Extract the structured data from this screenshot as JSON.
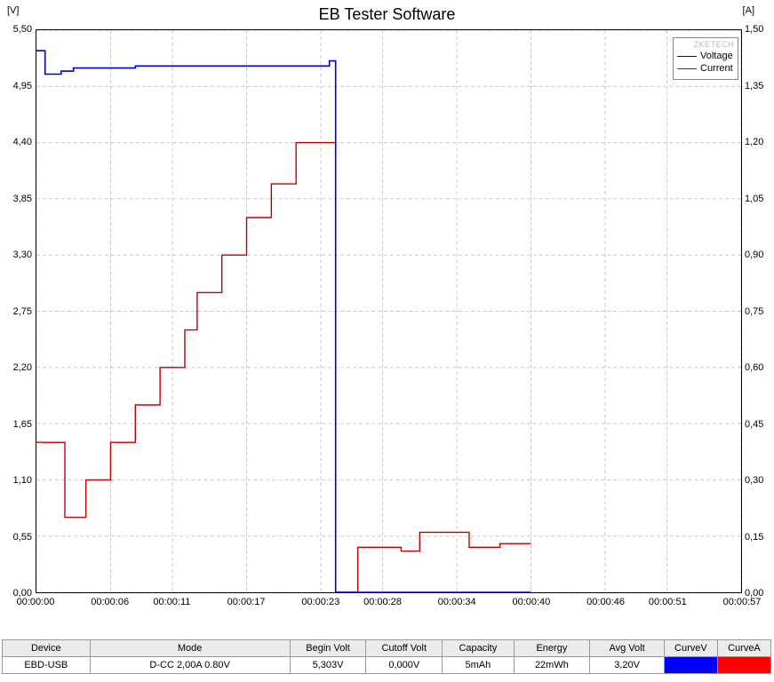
{
  "chart": {
    "title": "EB Tester Software",
    "y_left_unit": "[V]",
    "y_right_unit": "[A]",
    "watermark": "ZKETECH",
    "background_color": "#ffffff",
    "grid_color": "#c8c8c8",
    "plot_border_color": "#000000",
    "plot": {
      "x_min": 0,
      "x_max": 57
    },
    "y_left": {
      "min": 0.0,
      "max": 5.5,
      "ticks": [
        "0,00",
        "0,55",
        "1,10",
        "1,65",
        "2,20",
        "2,75",
        "3,30",
        "3,85",
        "4,40",
        "4,95",
        "5,50"
      ]
    },
    "y_right": {
      "min": 0.0,
      "max": 1.5,
      "ticks": [
        "0,00",
        "0,15",
        "0,30",
        "0,45",
        "0,60",
        "0,75",
        "0,90",
        "1,05",
        "1,20",
        "1,35",
        "1,50"
      ]
    },
    "x_ticks": {
      "positions": [
        0,
        6,
        11,
        17,
        23,
        28,
        34,
        40,
        46,
        51,
        57
      ],
      "labels": [
        "00:00:00",
        "00:00:06",
        "00:00:11",
        "00:00:17",
        "00:00:23",
        "00:00:28",
        "00:00:34",
        "00:00:40",
        "00:00:46",
        "00:00:51",
        "00:00:57"
      ]
    },
    "series": {
      "voltage": {
        "label": "Voltage",
        "color": "#0000c8",
        "line_width": 1.6,
        "points": [
          [
            0.0,
            5.3
          ],
          [
            0.7,
            5.3
          ],
          [
            0.7,
            5.07
          ],
          [
            2.0,
            5.07
          ],
          [
            2.0,
            5.1
          ],
          [
            3.0,
            5.1
          ],
          [
            3.0,
            5.13
          ],
          [
            5.0,
            5.13
          ],
          [
            5.0,
            5.13
          ],
          [
            8.0,
            5.13
          ],
          [
            8.0,
            5.15
          ],
          [
            23.7,
            5.15
          ],
          [
            23.7,
            5.2
          ],
          [
            24.2,
            5.2
          ],
          [
            24.2,
            0.0
          ],
          [
            40.0,
            0.0
          ]
        ]
      },
      "current": {
        "label": "Current",
        "color": "#c00000",
        "line_width": 1.4,
        "points": [
          [
            0.0,
            0.4
          ],
          [
            2.3,
            0.4
          ],
          [
            2.3,
            0.2
          ],
          [
            4.0,
            0.2
          ],
          [
            4.0,
            0.3
          ],
          [
            6.0,
            0.3
          ],
          [
            6.0,
            0.4
          ],
          [
            8.0,
            0.4
          ],
          [
            8.0,
            0.5
          ],
          [
            10.0,
            0.5
          ],
          [
            10.0,
            0.6
          ],
          [
            12.0,
            0.6
          ],
          [
            12.0,
            0.7
          ],
          [
            13.0,
            0.7
          ],
          [
            13.0,
            0.8
          ],
          [
            15.0,
            0.8
          ],
          [
            15.0,
            0.9
          ],
          [
            17.0,
            0.9
          ],
          [
            17.0,
            1.0
          ],
          [
            19.0,
            1.0
          ],
          [
            19.0,
            1.09
          ],
          [
            21.0,
            1.09
          ],
          [
            21.0,
            1.2
          ],
          [
            24.2,
            1.2
          ],
          [
            24.2,
            0.0
          ],
          [
            26.0,
            0.0
          ],
          [
            26.0,
            0.12
          ],
          [
            29.5,
            0.12
          ],
          [
            29.5,
            0.11
          ],
          [
            31.0,
            0.11
          ],
          [
            31.0,
            0.16
          ],
          [
            35.0,
            0.16
          ],
          [
            35.0,
            0.12
          ],
          [
            37.5,
            0.12
          ],
          [
            37.5,
            0.13
          ],
          [
            40.0,
            0.13
          ]
        ]
      }
    },
    "current_scale_max": 1.5
  },
  "table": {
    "headers": [
      "Device",
      "Mode",
      "Begin Volt",
      "Cutoff Volt",
      "Capacity",
      "Energy",
      "Avg Volt",
      "CurveV",
      "CurveA"
    ],
    "row": {
      "device": "EBD-USB",
      "mode": "D-CC  2,00A  0.80V",
      "begin_volt": "5,303V",
      "cutoff_volt": "0,000V",
      "capacity": "5mAh",
      "energy": "22mWh",
      "avg_volt": "3,20V"
    },
    "curve_v_color": "#0000ff",
    "curve_a_color": "#ff0000"
  }
}
